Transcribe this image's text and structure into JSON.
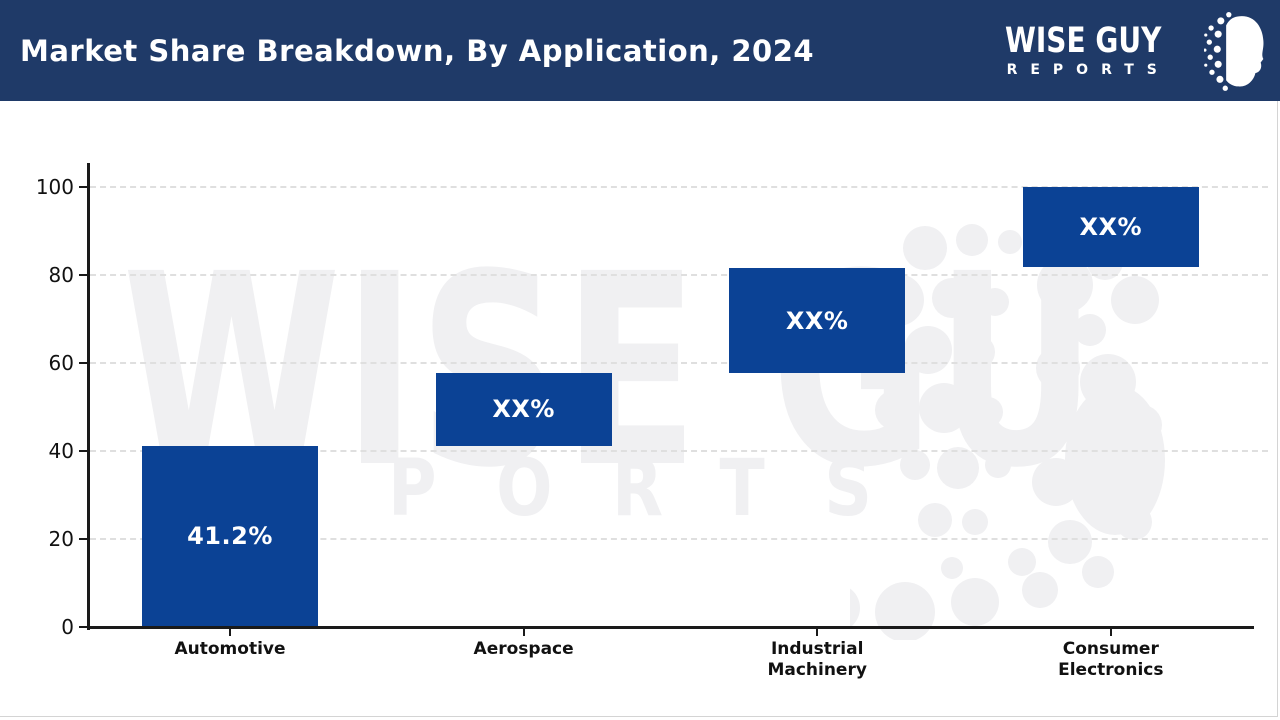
{
  "colors": {
    "header_bg": "#1F3A68",
    "bar_blue": "#0B4295",
    "grid": "#DFDFDF",
    "axis": "#1A1A1A",
    "text": "#111111",
    "watermark": "#F0F0F2",
    "hairline": "#D4D4D4",
    "logo_white": "#FFFFFF"
  },
  "header": {
    "title": "Market Share Breakdown, By Application, 2024",
    "logo": {
      "line1": "WISE GUY",
      "line2": "REPORTS"
    }
  },
  "watermark": {
    "line1": "WISE GU",
    "line2": "PORTS"
  },
  "chart_data": {
    "type": "bar",
    "subtype": "waterfall",
    "title": "Market Share Breakdown, By Application, 2024",
    "xlabel": "",
    "ylabel": "",
    "ylim": [
      0,
      105
    ],
    "y_ticks": [
      0,
      20,
      40,
      60,
      80,
      100
    ],
    "grid": "horizontal dashed",
    "legend": "none",
    "bar_color": "#0B4295",
    "categories": [
      "Automotive",
      "Aerospace",
      "Industrial Machinery",
      "Consumer Electronics"
    ],
    "category_label_lines": [
      [
        "Automotive"
      ],
      [
        "Aerospace"
      ],
      [
        "Industrial",
        "Machinery"
      ],
      [
        "Consumer",
        "Electronics"
      ]
    ],
    "segments": [
      {
        "category": "Automotive",
        "start": 0,
        "end": 41.2,
        "label": "41.2%"
      },
      {
        "category": "Aerospace",
        "start": 41.2,
        "end": 57.7,
        "label": "XX%"
      },
      {
        "category": "Industrial Machinery",
        "start": 57.7,
        "end": 81.6,
        "label": "XX%"
      },
      {
        "category": "Consumer Electronics",
        "start": 81.8,
        "end": 100,
        "label": "XX%"
      }
    ]
  }
}
